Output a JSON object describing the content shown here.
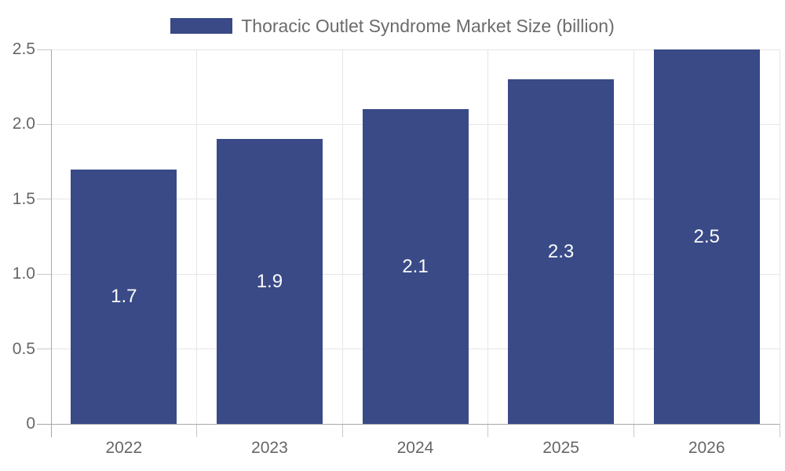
{
  "chart_data": {
    "type": "bar",
    "title": "",
    "legend_entries": [
      "Thoracic Outlet Syndrome Market Size (billion)"
    ],
    "legend_position": "top-center",
    "categories": [
      "2022",
      "2023",
      "2024",
      "2025",
      "2026"
    ],
    "values": [
      1.7,
      1.9,
      2.1,
      2.3,
      2.5
    ],
    "value_labels": [
      "1.7",
      "1.9",
      "2.1",
      "2.3",
      "2.5"
    ],
    "value_label_position": "center-of-bar",
    "xlabel": "",
    "ylabel": "",
    "ylim": [
      0,
      2.5
    ],
    "yticks": [
      0,
      0.5,
      1.0,
      1.5,
      2.0,
      2.5
    ],
    "ytick_labels": [
      "0",
      "0.5",
      "1.0",
      "1.5",
      "2.0",
      "2.5"
    ],
    "grid": true,
    "x_gridlines_at_category_boundaries": true,
    "colors": {
      "bar": "#394A87",
      "grid": "#e6e6e6",
      "tick": "#c9c9c9",
      "spine": "#a8a8a8",
      "tick_label": "#666666",
      "legend_text": "#6b6b6b",
      "value_label": "#fbfbfb",
      "background": "#ffffff"
    }
  }
}
